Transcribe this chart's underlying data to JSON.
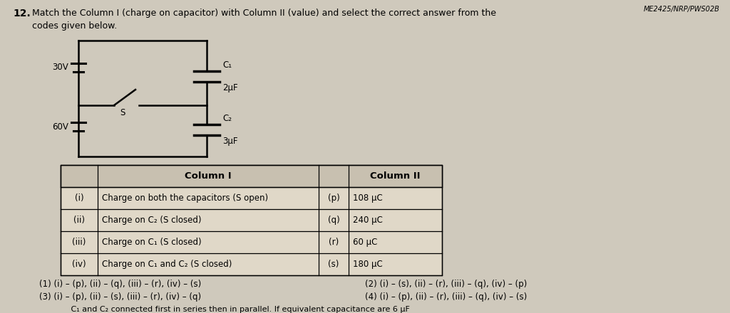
{
  "bg_color": "#cfc9bc",
  "header_text": "ME2425/NRP/PWS02B",
  "col1_header": "Column I",
  "col2_header": "Column II",
  "col1_rows": [
    [
      "(i)",
      "Charge on both the capacitors (S open)"
    ],
    [
      "(ii)",
      "Charge on C₂ (S closed)"
    ],
    [
      "(iii)",
      "Charge on C₁ (S closed)"
    ],
    [
      "(iv)",
      "Charge on C₁ and C₂ (S closed)"
    ]
  ],
  "col2_rows": [
    [
      "(p)",
      "108 μC"
    ],
    [
      "(q)",
      "240 μC"
    ],
    [
      "(r)",
      "60 μC"
    ],
    [
      "(s)",
      "180 μC"
    ]
  ],
  "options_left": [
    "(1) (i) – (p), (ii) – (q), (iii) – (r), (iv) – (s)",
    "(3) (i) – (p), (ii) – (s), (iii) – (r), (iv) – (q)"
  ],
  "options_right": [
    "(2) (i) – (s), (ii) – (r), (iii) – (q), (iv) – (p)",
    "(4) (i) – (p), (ii) – (r), (iii) – (q), (iv) – (s)"
  ],
  "circuit_30v": "30V",
  "circuit_60v": "60V",
  "circuit_s": "S"
}
